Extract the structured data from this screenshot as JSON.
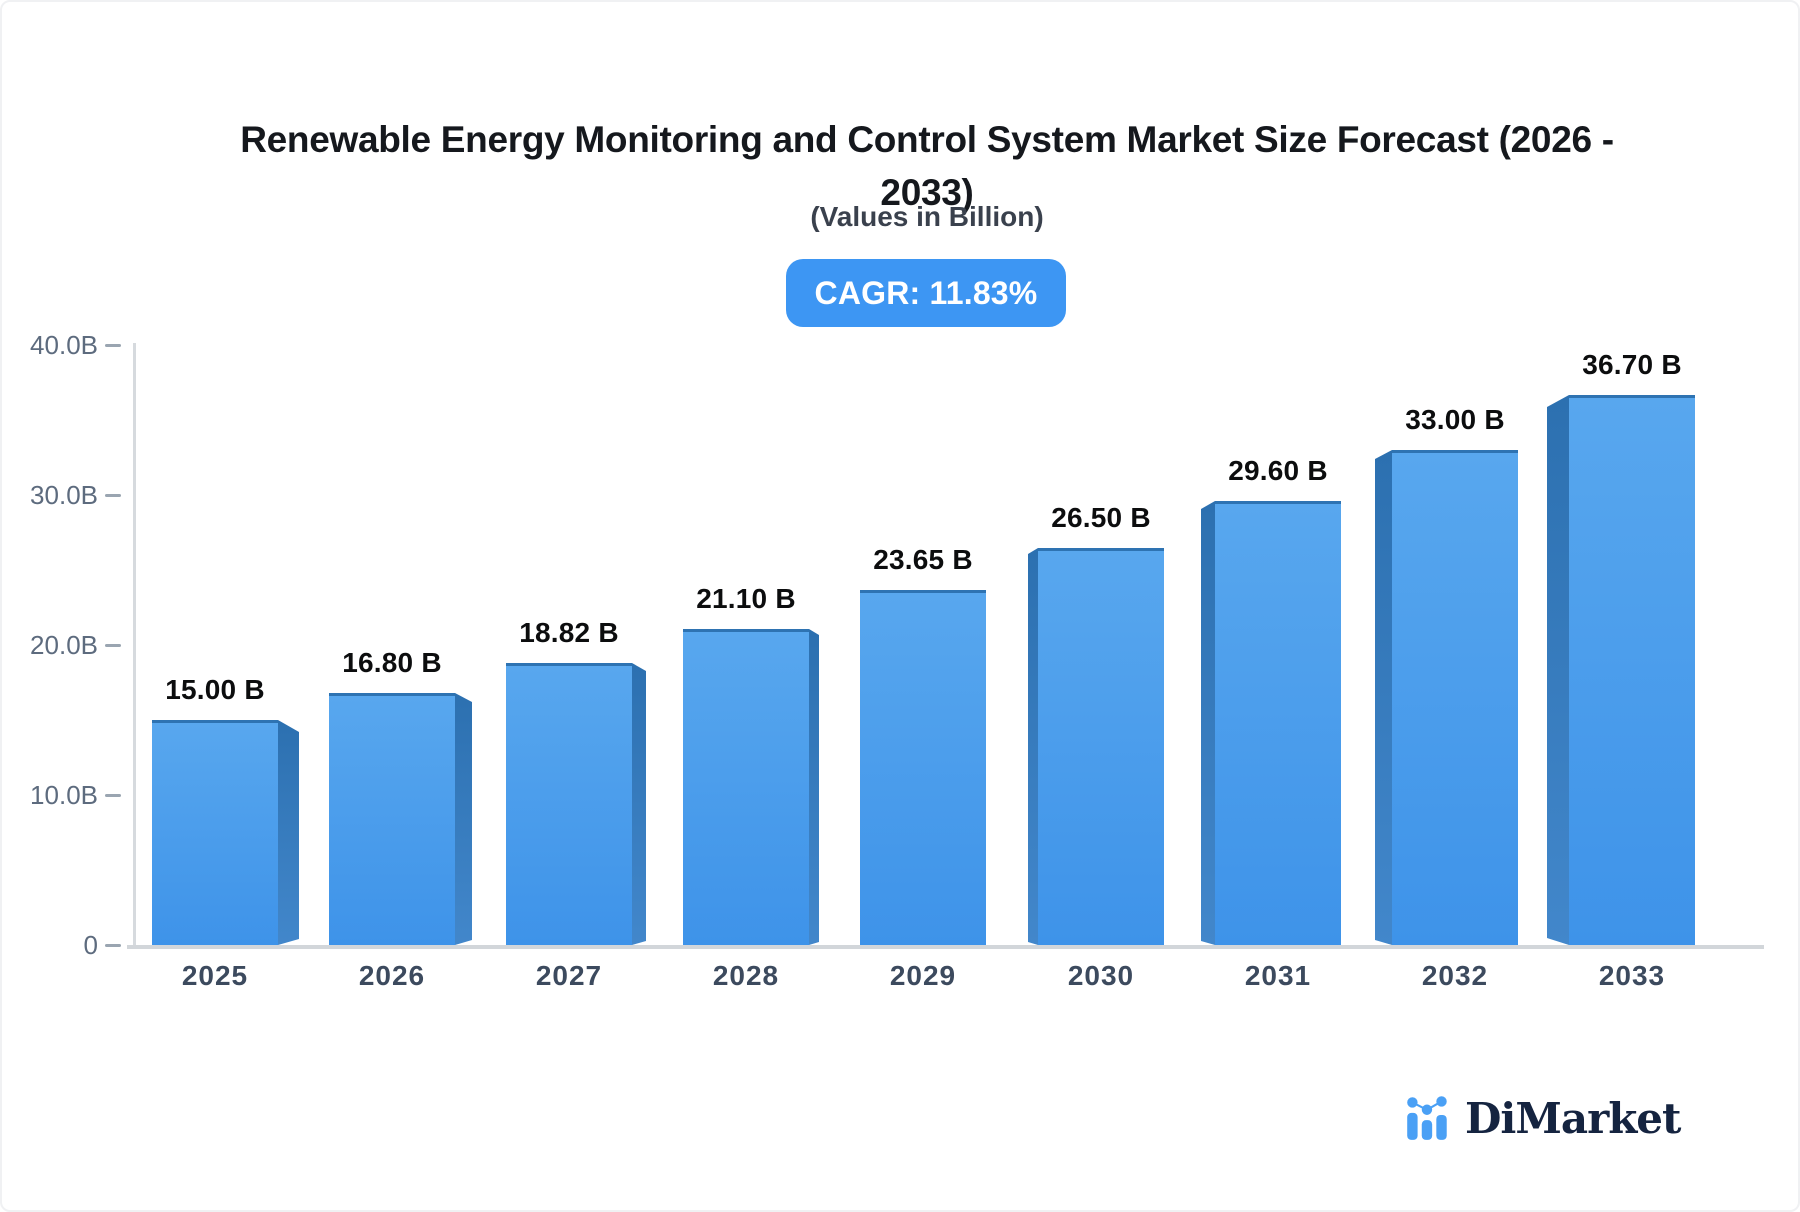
{
  "header": {
    "title": "Renewable Energy Monitoring and Control System Market Size Forecast (2026 - 2033)",
    "title_lines": [
      "Renewable Energy Monitoring and Control System Market Size Forecast (2026 -",
      "2033)"
    ],
    "subtitle": "(Values in Billion)",
    "cagr_label": "CAGR: 11.83%"
  },
  "chart_data": {
    "type": "bar",
    "title": "Renewable Energy Monitoring and Control System Market Size Forecast (2026 - 2033)",
    "subtitle": "(Values in Billion)",
    "cagr_percent": 11.83,
    "categories": [
      "2025",
      "2026",
      "2027",
      "2028",
      "2029",
      "2030",
      "2031",
      "2032",
      "2033"
    ],
    "values": [
      15.0,
      16.8,
      18.82,
      21.1,
      23.65,
      26.5,
      29.6,
      33.0,
      36.7
    ],
    "labels": [
      "15.00 B",
      "16.80 B",
      "18.82 B",
      "21.10 B",
      "23.65 B",
      "26.50 B",
      "29.60 B",
      "33.00 B",
      "36.70 B"
    ],
    "unit": "Billion",
    "ylim": [
      0,
      40
    ],
    "y_ticks": [
      {
        "label": "40.0B",
        "value": 40
      },
      {
        "label": "30.0B",
        "value": 30
      },
      {
        "label": "20.0B",
        "value": 20
      },
      {
        "label": "10.0B",
        "value": 10
      },
      {
        "label": "0",
        "value": 0
      }
    ],
    "grid": false,
    "legend": false,
    "bar_style": "3d-perspective"
  },
  "branding": {
    "logo_text": "DiMarket"
  },
  "colors": {
    "bar_front_top": "#58a7ee",
    "bar_front_bottom": "#3e93e9",
    "bar_top_edge": "#2e73b2",
    "bar_side_dark": "#2c70b0",
    "bar_side_light": "#4287cb",
    "badge_bg": "#3d96f3",
    "badge_text": "#ffffff",
    "axis_line": "#d6dade",
    "baseline": "#d2d6da",
    "tick_label": "#5d6b7e",
    "x_label": "#3c4a5e",
    "title_text": "#15181d",
    "subtitle_text": "#3a414d",
    "logo_blue": "#4aa0f5",
    "logo_navy": "#152440"
  }
}
